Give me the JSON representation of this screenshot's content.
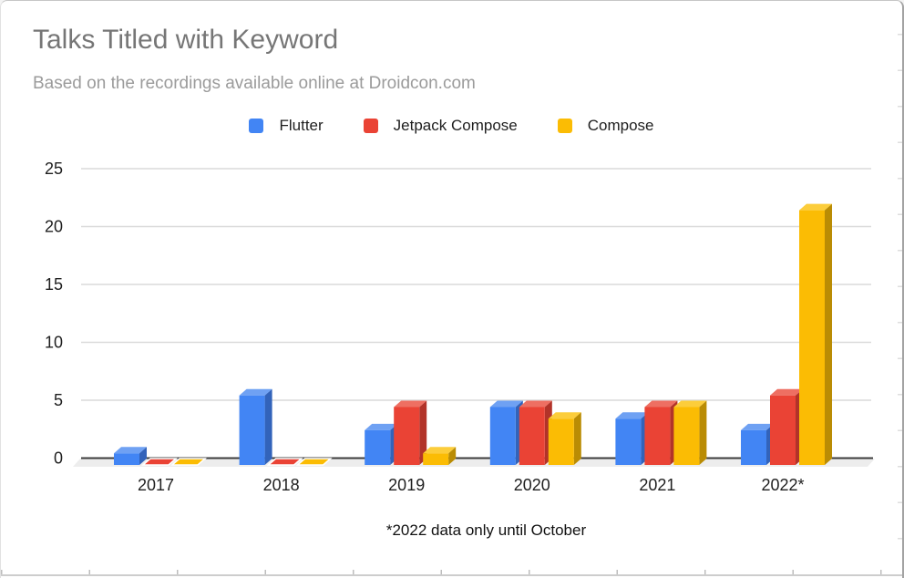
{
  "chart_data": {
    "type": "bar",
    "style": "3d-grouped-columns",
    "title": "Talks Titled with Keyword",
    "subtitle": "Based on the recordings available online at Droidcon.com",
    "categories": [
      "2017",
      "2018",
      "2019",
      "2020",
      "2021",
      "2022*"
    ],
    "series": [
      {
        "name": "Flutter",
        "color": "#4285F4",
        "top_color": "#6FA1F3",
        "side_color": "#3263BA",
        "values": [
          1,
          6,
          3,
          5,
          4,
          3
        ]
      },
      {
        "name": "Jetpack Compose",
        "color": "#EA4335",
        "top_color": "#EE6F62",
        "side_color": "#B23329",
        "values": [
          0,
          0,
          5,
          5,
          5,
          6
        ]
      },
      {
        "name": "Compose",
        "color": "#FBBC04",
        "top_color": "#FCCD3B",
        "side_color": "#BA8C04",
        "values": [
          0,
          0,
          1,
          4,
          5,
          22
        ]
      }
    ],
    "xlabel": "",
    "ylabel": "",
    "y_ticks": [
      0,
      5,
      10,
      15,
      20,
      25
    ],
    "ylim": [
      0,
      25
    ],
    "grid": "horizontal",
    "legend_position": "top",
    "footnote": "*2022 data only until October"
  },
  "colors": {
    "title_text": "#767676",
    "subtitle_text": "#9b9b9b",
    "axis_text": "#1f1f1f",
    "axis_line": "#3c3c3c",
    "gridline": "#dadada",
    "floor": "#ededed",
    "background": "#ffffff",
    "sheet_line": "#cdcdcd"
  }
}
